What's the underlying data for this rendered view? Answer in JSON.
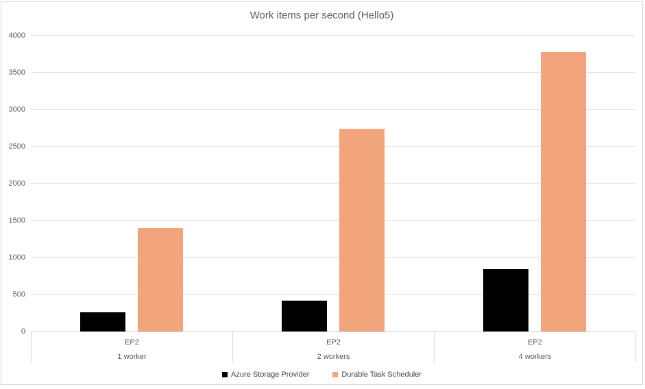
{
  "chart_data": {
    "type": "bar",
    "title": "Work items per second (Hello5)",
    "categories": [
      {
        "group": "EP2",
        "sub": "1 worker"
      },
      {
        "group": "EP2",
        "sub": "2 workers"
      },
      {
        "group": "EP2",
        "sub": "4 workers"
      }
    ],
    "series": [
      {
        "name": "Azure Storage Provider",
        "color": "#000000",
        "values": [
          260,
          420,
          840
        ]
      },
      {
        "name": "Durable Task Scheduler",
        "color": "#F2A57C",
        "values": [
          1400,
          2740,
          3780
        ]
      }
    ],
    "xlabel": "",
    "ylabel": "",
    "ylim": [
      0,
      4000
    ],
    "yticks": [
      0,
      500,
      1000,
      1500,
      2000,
      2500,
      3000,
      3500,
      4000
    ],
    "grid": true,
    "legend_position": "bottom"
  },
  "colors": {
    "background": "#FFFFFF",
    "frame_border": "#D9D9D9",
    "gridline": "#D9D9D9",
    "axis_line": "#CFCFCF",
    "title_text": "#595959",
    "axis_text": "#595959",
    "legend_text": "#404040"
  }
}
